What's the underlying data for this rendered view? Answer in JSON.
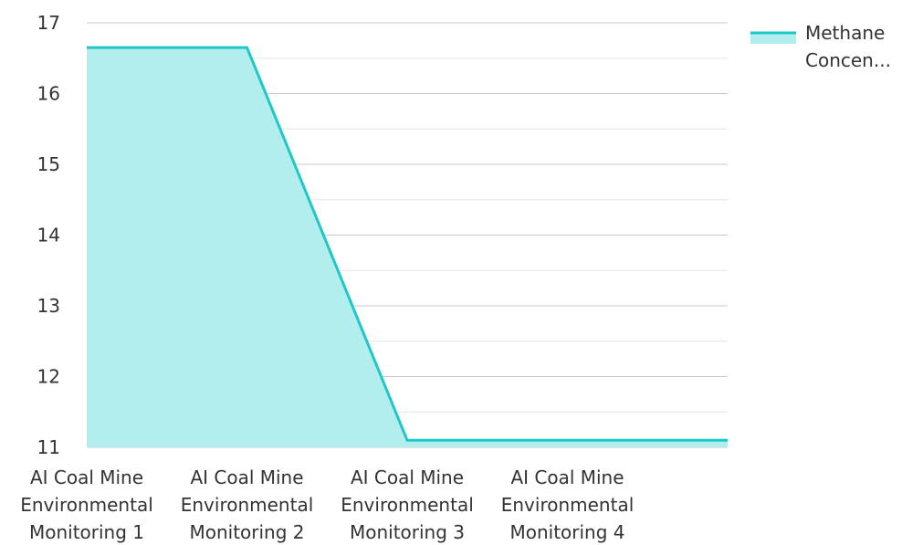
{
  "chart_data": {
    "type": "area",
    "categories": [
      [
        "AI Coal Mine",
        "Environmental",
        "Monitoring 1"
      ],
      [
        "AI Coal Mine",
        "Environmental",
        "Monitoring 2"
      ],
      [
        "AI Coal Mine",
        "Environmental",
        "Monitoring 3"
      ],
      [
        "AI Coal Mine",
        "Environmental",
        "Monitoring 4"
      ]
    ],
    "series": [
      {
        "name": "Methane Concen...",
        "name_lines": [
          "Methane",
          "Concen..."
        ],
        "values": [
          16.65,
          16.65,
          11.1,
          11.1
        ],
        "color": "#1ec8c8",
        "fill": "#b3eeee"
      }
    ],
    "title": "",
    "xlabel": "",
    "ylabel": "",
    "ylim": [
      11,
      17
    ],
    "yticks": [
      "11",
      "12",
      "13",
      "14",
      "15",
      "16",
      "17"
    ],
    "grid": true,
    "legend": "top-right"
  }
}
